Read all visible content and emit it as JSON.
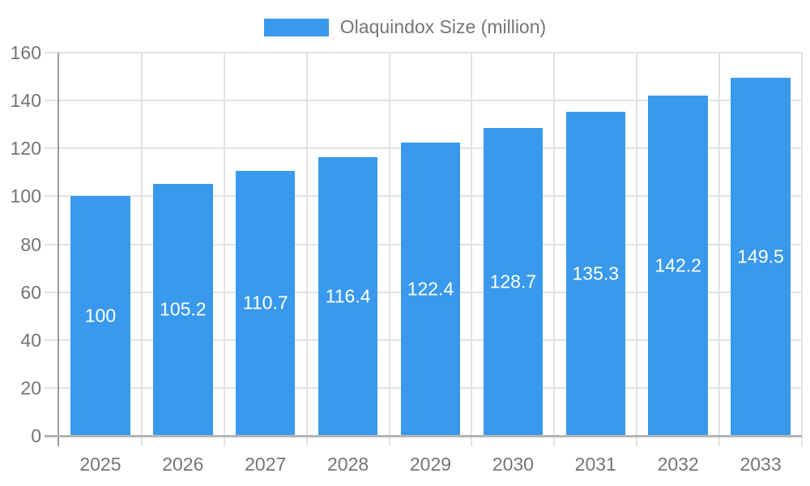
{
  "legend": {
    "label": "Olaquindox Size (million)"
  },
  "chart_data": {
    "type": "bar",
    "title": "",
    "categories": [
      "2025",
      "2026",
      "2027",
      "2028",
      "2029",
      "2030",
      "2031",
      "2032",
      "2033"
    ],
    "values": [
      100,
      105.2,
      110.7,
      116.4,
      122.4,
      128.7,
      135.3,
      142.2,
      149.5
    ],
    "series_name": "Olaquindox Size (million)",
    "xlabel": "",
    "ylabel": "",
    "ylim": [
      0,
      160
    ],
    "yticks": [
      0,
      20,
      40,
      60,
      80,
      100,
      120,
      140,
      160
    ],
    "grid": true,
    "legend_position": "top-center",
    "value_labels_inside_bars": true
  },
  "colors": {
    "bar": "#3999ec",
    "grid": "#e3e3e3",
    "y_axis": "#999999",
    "x_axis": "#b5b5b5",
    "axis_text": "#757575",
    "legend_text": "#757575",
    "value_label_text": "#ffffff",
    "background": "#ffffff"
  }
}
